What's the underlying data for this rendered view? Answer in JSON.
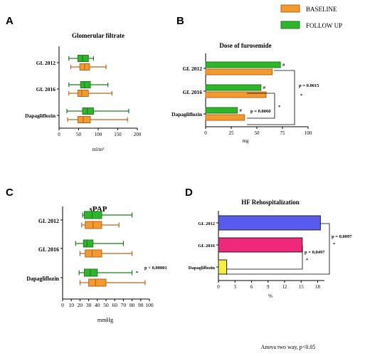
{
  "footnote": "Anova two way, p<0.05",
  "legend": {
    "items": [
      {
        "label": "BASELINE",
        "color": "#f39a2e"
      },
      {
        "label": "FOLLOW UP",
        "color": "#2fb52c"
      }
    ]
  },
  "colors": {
    "baseline": "#f39a2e",
    "followup": "#2fb52c",
    "baseline_stroke": "#b9661b",
    "followup_stroke": "#1f7d1e"
  },
  "chart_data": [
    {
      "panel": "A",
      "type": "boxplot",
      "orientation": "horizontal",
      "title": "Glomerular filtrate",
      "xlabel": "ml/m²",
      "xlim": [
        0,
        200
      ],
      "xticks": [
        "0",
        "50",
        "100",
        "150",
        "200"
      ],
      "xtick_values": [
        0,
        50,
        100,
        150,
        200
      ],
      "categories": [
        "GL 2012",
        "GL 2016",
        "Dapagliflozin"
      ],
      "series": [
        {
          "name": "FOLLOW UP",
          "boxes": [
            {
              "min": 25,
              "q1": 48,
              "median": 60,
              "q3": 75,
              "max": 88
            },
            {
              "min": 25,
              "q1": 55,
              "median": 65,
              "q3": 80,
              "max": 125
            },
            {
              "min": 20,
              "q1": 60,
              "median": 72,
              "q3": 88,
              "max": 178
            }
          ]
        },
        {
          "name": "BASELINE",
          "boxes": [
            {
              "min": 30,
              "q1": 53,
              "median": 65,
              "q3": 78,
              "max": 120
            },
            {
              "min": 25,
              "q1": 48,
              "median": 58,
              "q3": 75,
              "max": 135
            },
            {
              "min": 22,
              "q1": 48,
              "median": 62,
              "q3": 80,
              "max": 175
            }
          ]
        }
      ]
    },
    {
      "panel": "B",
      "type": "bar",
      "orientation": "horizontal",
      "title": "Dose of furosemide",
      "xlabel": "mg",
      "xlim": [
        0,
        100
      ],
      "xticks": [
        "0",
        "25",
        "50",
        "75",
        "100"
      ],
      "xtick_values": [
        0,
        25,
        50,
        75,
        100
      ],
      "categories": [
        "GL 2012",
        "GL 2016",
        "Dapagliflozin"
      ],
      "series": [
        {
          "name": "FOLLOW UP",
          "values": [
            73,
            54,
            31
          ]
        },
        {
          "name": "BASELINE",
          "values": [
            65,
            59,
            38
          ]
        }
      ],
      "markers": [
        "#",
        "#",
        "#"
      ],
      "annotations": {
        "p1": "p = 0.0060",
        "p2": "p = 0.0015",
        "star": "*"
      }
    },
    {
      "panel": "C",
      "type": "boxplot",
      "orientation": "horizontal",
      "title": "sPAP",
      "xlabel": "mmHg",
      "xlim": [
        0,
        100
      ],
      "xticks": [
        "0",
        "10",
        "20",
        "30",
        "40",
        "50",
        "60",
        "70",
        "80",
        "90",
        "100"
      ],
      "xtick_values": [
        0,
        10,
        20,
        30,
        40,
        50,
        60,
        70,
        80,
        90,
        100
      ],
      "categories": [
        "GL 2012",
        "GL 2016",
        "Dapagliflozin"
      ],
      "series": [
        {
          "name": "FOLLOW UP",
          "boxes": [
            {
              "min": 23,
              "q1": 25,
              "median": 34,
              "q3": 45,
              "max": 80
            },
            {
              "min": 15,
              "q1": 24,
              "median": 28,
              "q3": 35,
              "max": 70
            },
            {
              "min": 19,
              "q1": 25,
              "median": 32,
              "q3": 40,
              "max": 80
            }
          ]
        },
        {
          "name": "BASELINE",
          "boxes": [
            {
              "min": 22,
              "q1": 26,
              "median": 35,
              "q3": 45,
              "max": 65
            },
            {
              "min": 20,
              "q1": 26,
              "median": 34,
              "q3": 45,
              "max": 80
            },
            {
              "min": 20,
              "q1": 30,
              "median": 38,
              "q3": 50,
              "max": 95
            }
          ]
        }
      ],
      "annotations": {
        "p": "p < 0,00001",
        "star": "*"
      }
    },
    {
      "panel": "D",
      "type": "bar",
      "orientation": "horizontal",
      "title": "HF Rehospitalization",
      "xlabel": "%",
      "xlim": [
        0,
        20
      ],
      "xticks": [
        "0",
        "3",
        "6",
        "9",
        "12",
        "15",
        "18"
      ],
      "xtick_values": [
        0,
        3,
        6,
        9,
        12,
        15,
        18
      ],
      "categories": [
        "GL 2012",
        "GL 2016",
        "Dapagliflozin"
      ],
      "values": [
        18.5,
        15.2,
        1.5
      ],
      "colors": [
        "#5a5cf0",
        "#f0287a",
        "#f4f03a"
      ],
      "annotations": {
        "p1": "p = 0,0497",
        "p2": "p = 0,0097",
        "star": "*"
      }
    }
  ]
}
